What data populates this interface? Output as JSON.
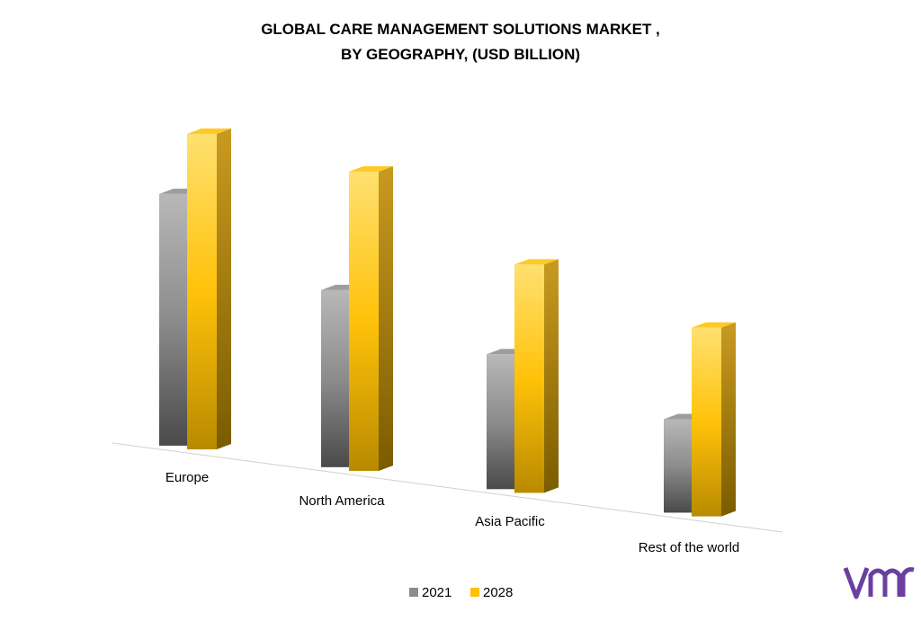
{
  "chart_data": {
    "type": "bar3d",
    "title_lines": [
      "GLOBAL CARE MANAGEMENT SOLUTIONS  MARKET ,",
      "BY GEOGRAPHY, (USD BILLION)"
    ],
    "categories": [
      "Europe",
      "North America",
      "Asia Pacific",
      "Rest of the world"
    ],
    "series": [
      {
        "name": "2021",
        "color": "#8c8c8c",
        "values": [
          28,
          19.7,
          15,
          10.4
        ]
      },
      {
        "name": "2028",
        "color": "#ffc000",
        "values": [
          35.1,
          33.3,
          25.4,
          21
        ]
      }
    ]
  }
}
